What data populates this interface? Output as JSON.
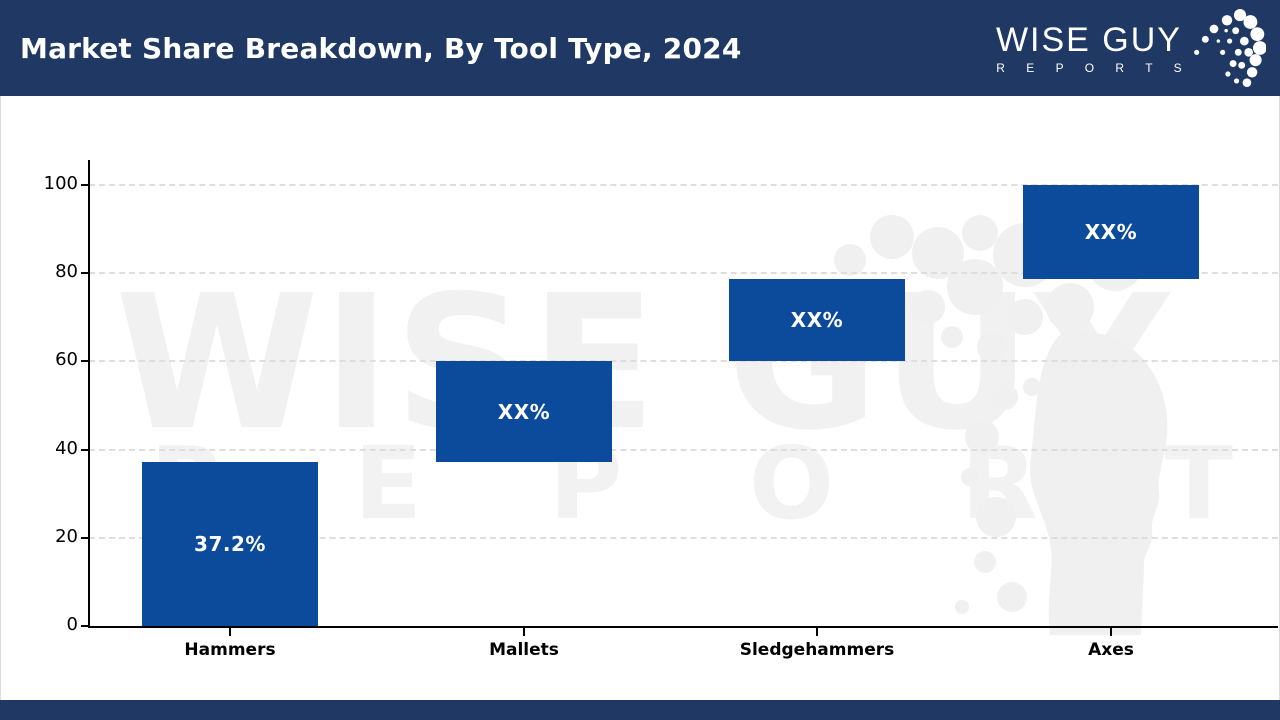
{
  "header": {
    "title": "Market Share Breakdown, By Tool Type, 2024",
    "logo": {
      "line1": "WISE GUY",
      "line2": "R E P O R T S"
    }
  },
  "watermark": {
    "line1": "WISE GUY",
    "line2": "R E P O R T S"
  },
  "chart_data": {
    "type": "waterfall",
    "title": "Market Share Breakdown, By Tool Type, 2024",
    "categories": [
      "Hammers",
      "Mallets",
      "Sledgehammers",
      "Axes"
    ],
    "segments": [
      {
        "category": "Hammers",
        "start": 0,
        "end": 37.2,
        "label": "37.2%"
      },
      {
        "category": "Mallets",
        "start": 37.2,
        "end": 60,
        "label": "XX%"
      },
      {
        "category": "Sledgehammers",
        "start": 60,
        "end": 78.8,
        "label": "XX%"
      },
      {
        "category": "Axes",
        "start": 78.8,
        "end": 100,
        "label": "XX%"
      }
    ],
    "yticks": [
      0,
      20,
      40,
      60,
      80,
      100
    ],
    "ylim": [
      0,
      105.7
    ],
    "grid": "horizontal-dashed",
    "legend": "none",
    "bar_color": "#0c4a9c",
    "bar_label_color": "#ffffff"
  },
  "colors": {
    "header_bg": "#203864",
    "footer_bg": "#203864",
    "bar": "#0c4a9c",
    "grid": "#dedede",
    "axis": "#000000",
    "watermark": "#f1f1f1"
  }
}
